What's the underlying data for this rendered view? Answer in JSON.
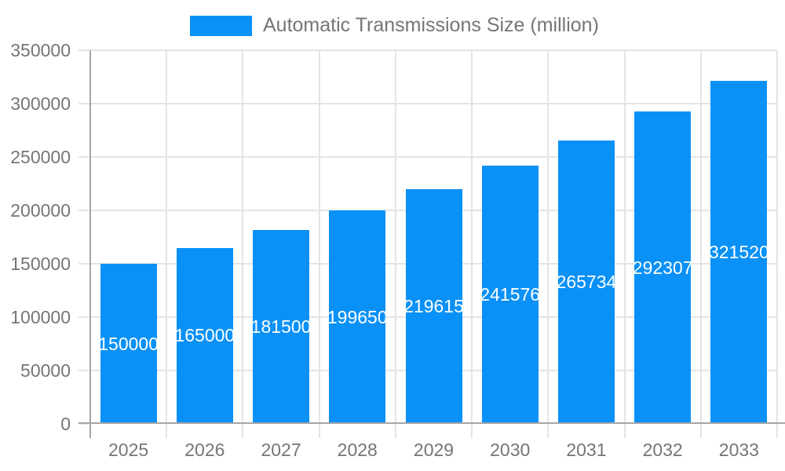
{
  "legend": {
    "label": "Automatic Transmissions Size (million)"
  },
  "chart_data": {
    "type": "bar",
    "title": "",
    "xlabel": "",
    "ylabel": "",
    "categories": [
      "2025",
      "2026",
      "2027",
      "2028",
      "2029",
      "2030",
      "2031",
      "2032",
      "2033"
    ],
    "series": [
      {
        "name": "Automatic Transmissions Size (million)",
        "values": [
          150000,
          165000,
          181500,
          199650,
          219615,
          241576,
          265734,
          292307,
          321520
        ]
      }
    ],
    "value_labels": [
      "150000",
      "165000",
      "181500",
      "199650",
      "219615",
      "241576",
      "265734",
      "292307",
      "321520"
    ],
    "ylim": [
      0,
      350000
    ],
    "yticks": [
      0,
      50000,
      100000,
      150000,
      200000,
      250000,
      300000,
      350000
    ],
    "ytick_labels": [
      "0",
      "50000",
      "100000",
      "150000",
      "200000",
      "250000",
      "300000",
      "350000"
    ],
    "grid": true,
    "legend_position": "top-center"
  },
  "colors": {
    "bar": "#0991F8",
    "axis_text": "#757575",
    "value_label_text": "#FFFFFF",
    "grid_line": "#E4E4E4",
    "axis_line": "#A6A6A6",
    "background": "#FFFFFF"
  }
}
